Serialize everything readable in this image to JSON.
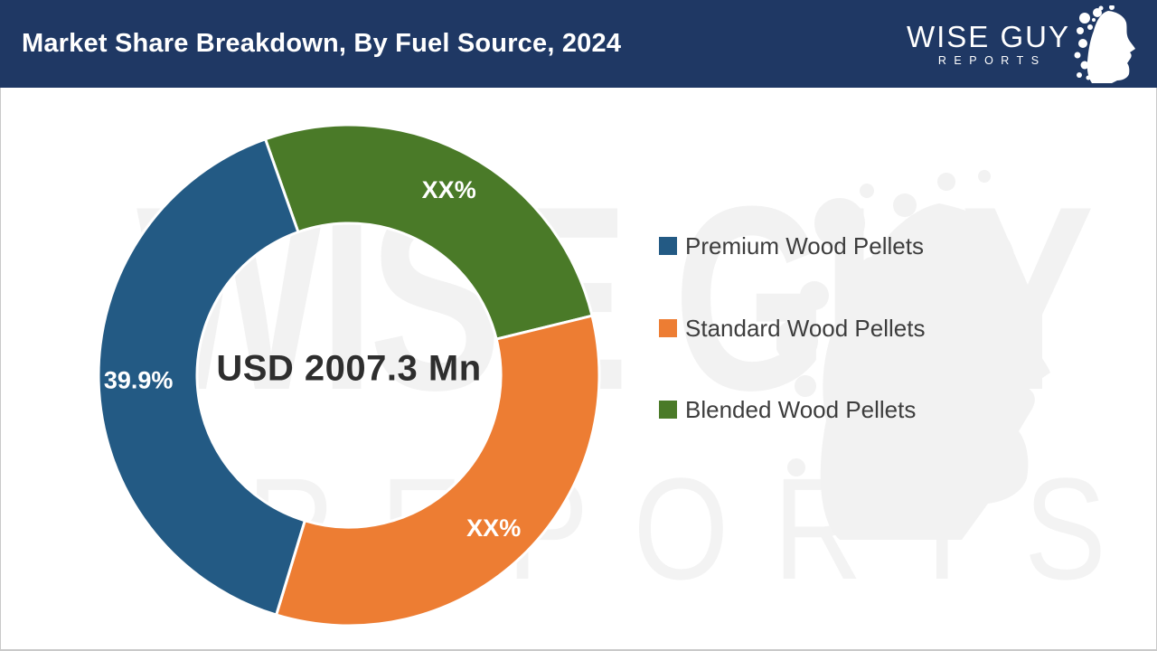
{
  "header": {
    "title": "Market Share Breakdown, By Fuel Source, 2024",
    "bg_color": "#1f3864",
    "logo": {
      "line1": "WISE GUY",
      "line2": "REPORTS"
    }
  },
  "watermark": {
    "line1": "WISE GUY",
    "line2": "REPORTS"
  },
  "chart_data": {
    "type": "pie",
    "subtype": "donut",
    "title": "Market Share Breakdown, By Fuel Source, 2024",
    "center_label": "USD 2007.3 Mn",
    "start_angle_deg": -19.5,
    "legend_position": "right",
    "segments": [
      {
        "name": "Blended Wood Pellets",
        "label": "XX%",
        "value_pct": 26.6,
        "color": "#4a7a28"
      },
      {
        "name": "Standard Wood Pellets",
        "label": "XX%",
        "value_pct": 33.5,
        "color": "#ed7d33"
      },
      {
        "name": "Premium Wood Pellets",
        "label": "39.9%",
        "value_pct": 39.9,
        "color": "#235a84"
      }
    ],
    "legend": [
      {
        "label": "Premium Wood Pellets",
        "color": "#235a84"
      },
      {
        "label": "Standard Wood Pellets",
        "color": "#ed7d33"
      },
      {
        "label": "Blended Wood Pellets",
        "color": "#4a7a28"
      }
    ]
  }
}
